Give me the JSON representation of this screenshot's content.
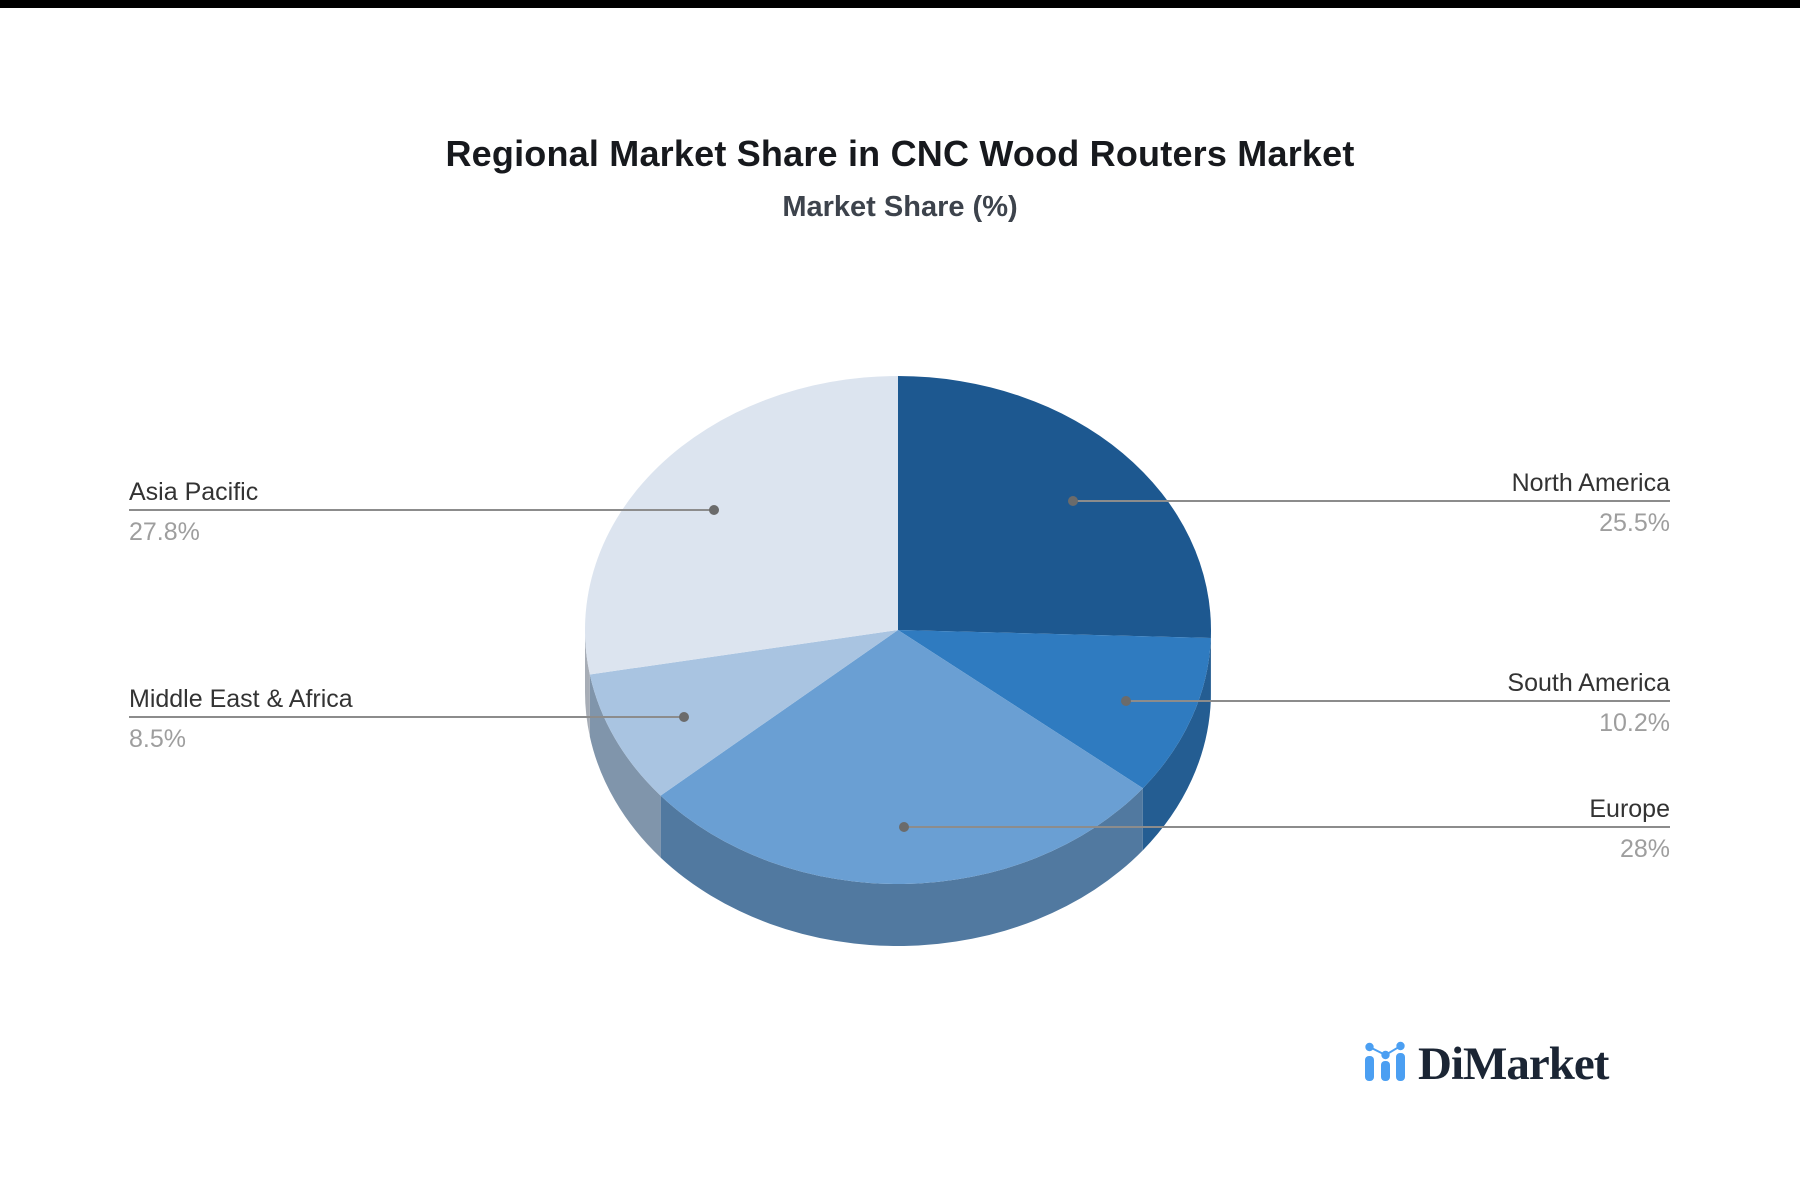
{
  "page": {
    "background": "#ffffff",
    "top_border_color": "#000000"
  },
  "chart_data": {
    "type": "pie",
    "title": "Regional Market Share in CNC Wood Routers Market",
    "subtitle": "Market Share (%)",
    "unit": "%",
    "start_angle_deg": 0,
    "direction": "clockwise",
    "style": "3d",
    "legend_position": "none (callout labels)",
    "slices": [
      {
        "label": "North America",
        "value": 25.5,
        "display": "25.5%",
        "color": "#1d5890"
      },
      {
        "label": "South America",
        "value": 10.2,
        "display": "10.2%",
        "color": "#2f7bc0"
      },
      {
        "label": "Europe",
        "value": 28,
        "display": "28%",
        "color": "#6a9fd3"
      },
      {
        "label": "Middle East & Africa",
        "value": 8.5,
        "display": "8.5%",
        "color": "#a9c4e1"
      },
      {
        "label": "Asia Pacific",
        "value": 27.8,
        "display": "27.8%",
        "color": "#dce4ef"
      }
    ],
    "label_name_color": "#333333",
    "label_value_color": "#9e9e9e",
    "leader_line_color": "#8c8c8c",
    "leader_dot_color": "#6b6b6b",
    "title_color": "#17191d",
    "subtitle_color": "#3d434c"
  },
  "branding": {
    "logo_text": "DiMarket",
    "logo_text_color": "#1b2534",
    "icon_color": "#4b9ff2"
  }
}
